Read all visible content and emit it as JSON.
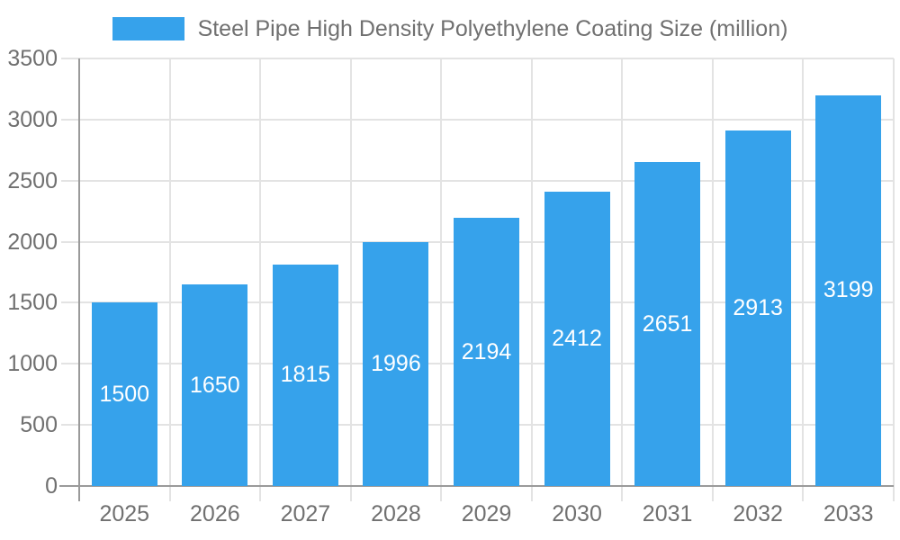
{
  "chart_data": {
    "type": "bar",
    "title": "Steel Pipe High Density Polyethylene Coating Size (million)",
    "categories": [
      "2025",
      "2026",
      "2027",
      "2028",
      "2029",
      "2030",
      "2031",
      "2032",
      "2033"
    ],
    "values": [
      1500,
      1650,
      1815,
      1996,
      2194,
      2412,
      2651,
      2913,
      3199
    ],
    "yticks": [
      0,
      500,
      1000,
      1500,
      2000,
      2500,
      3000,
      3500
    ],
    "ylim": [
      0,
      3500
    ],
    "xlabel": "",
    "ylabel": "",
    "grid": "both",
    "legend_position": "top-center",
    "colors": {
      "bar": "#36a2eb",
      "bar_value_label": "#ffffff",
      "axis_line": "#9a9a9a",
      "grid_line": "#e3e3e3",
      "tick_text": "#707070",
      "legend_text": "#707070",
      "background": "#ffffff"
    }
  }
}
